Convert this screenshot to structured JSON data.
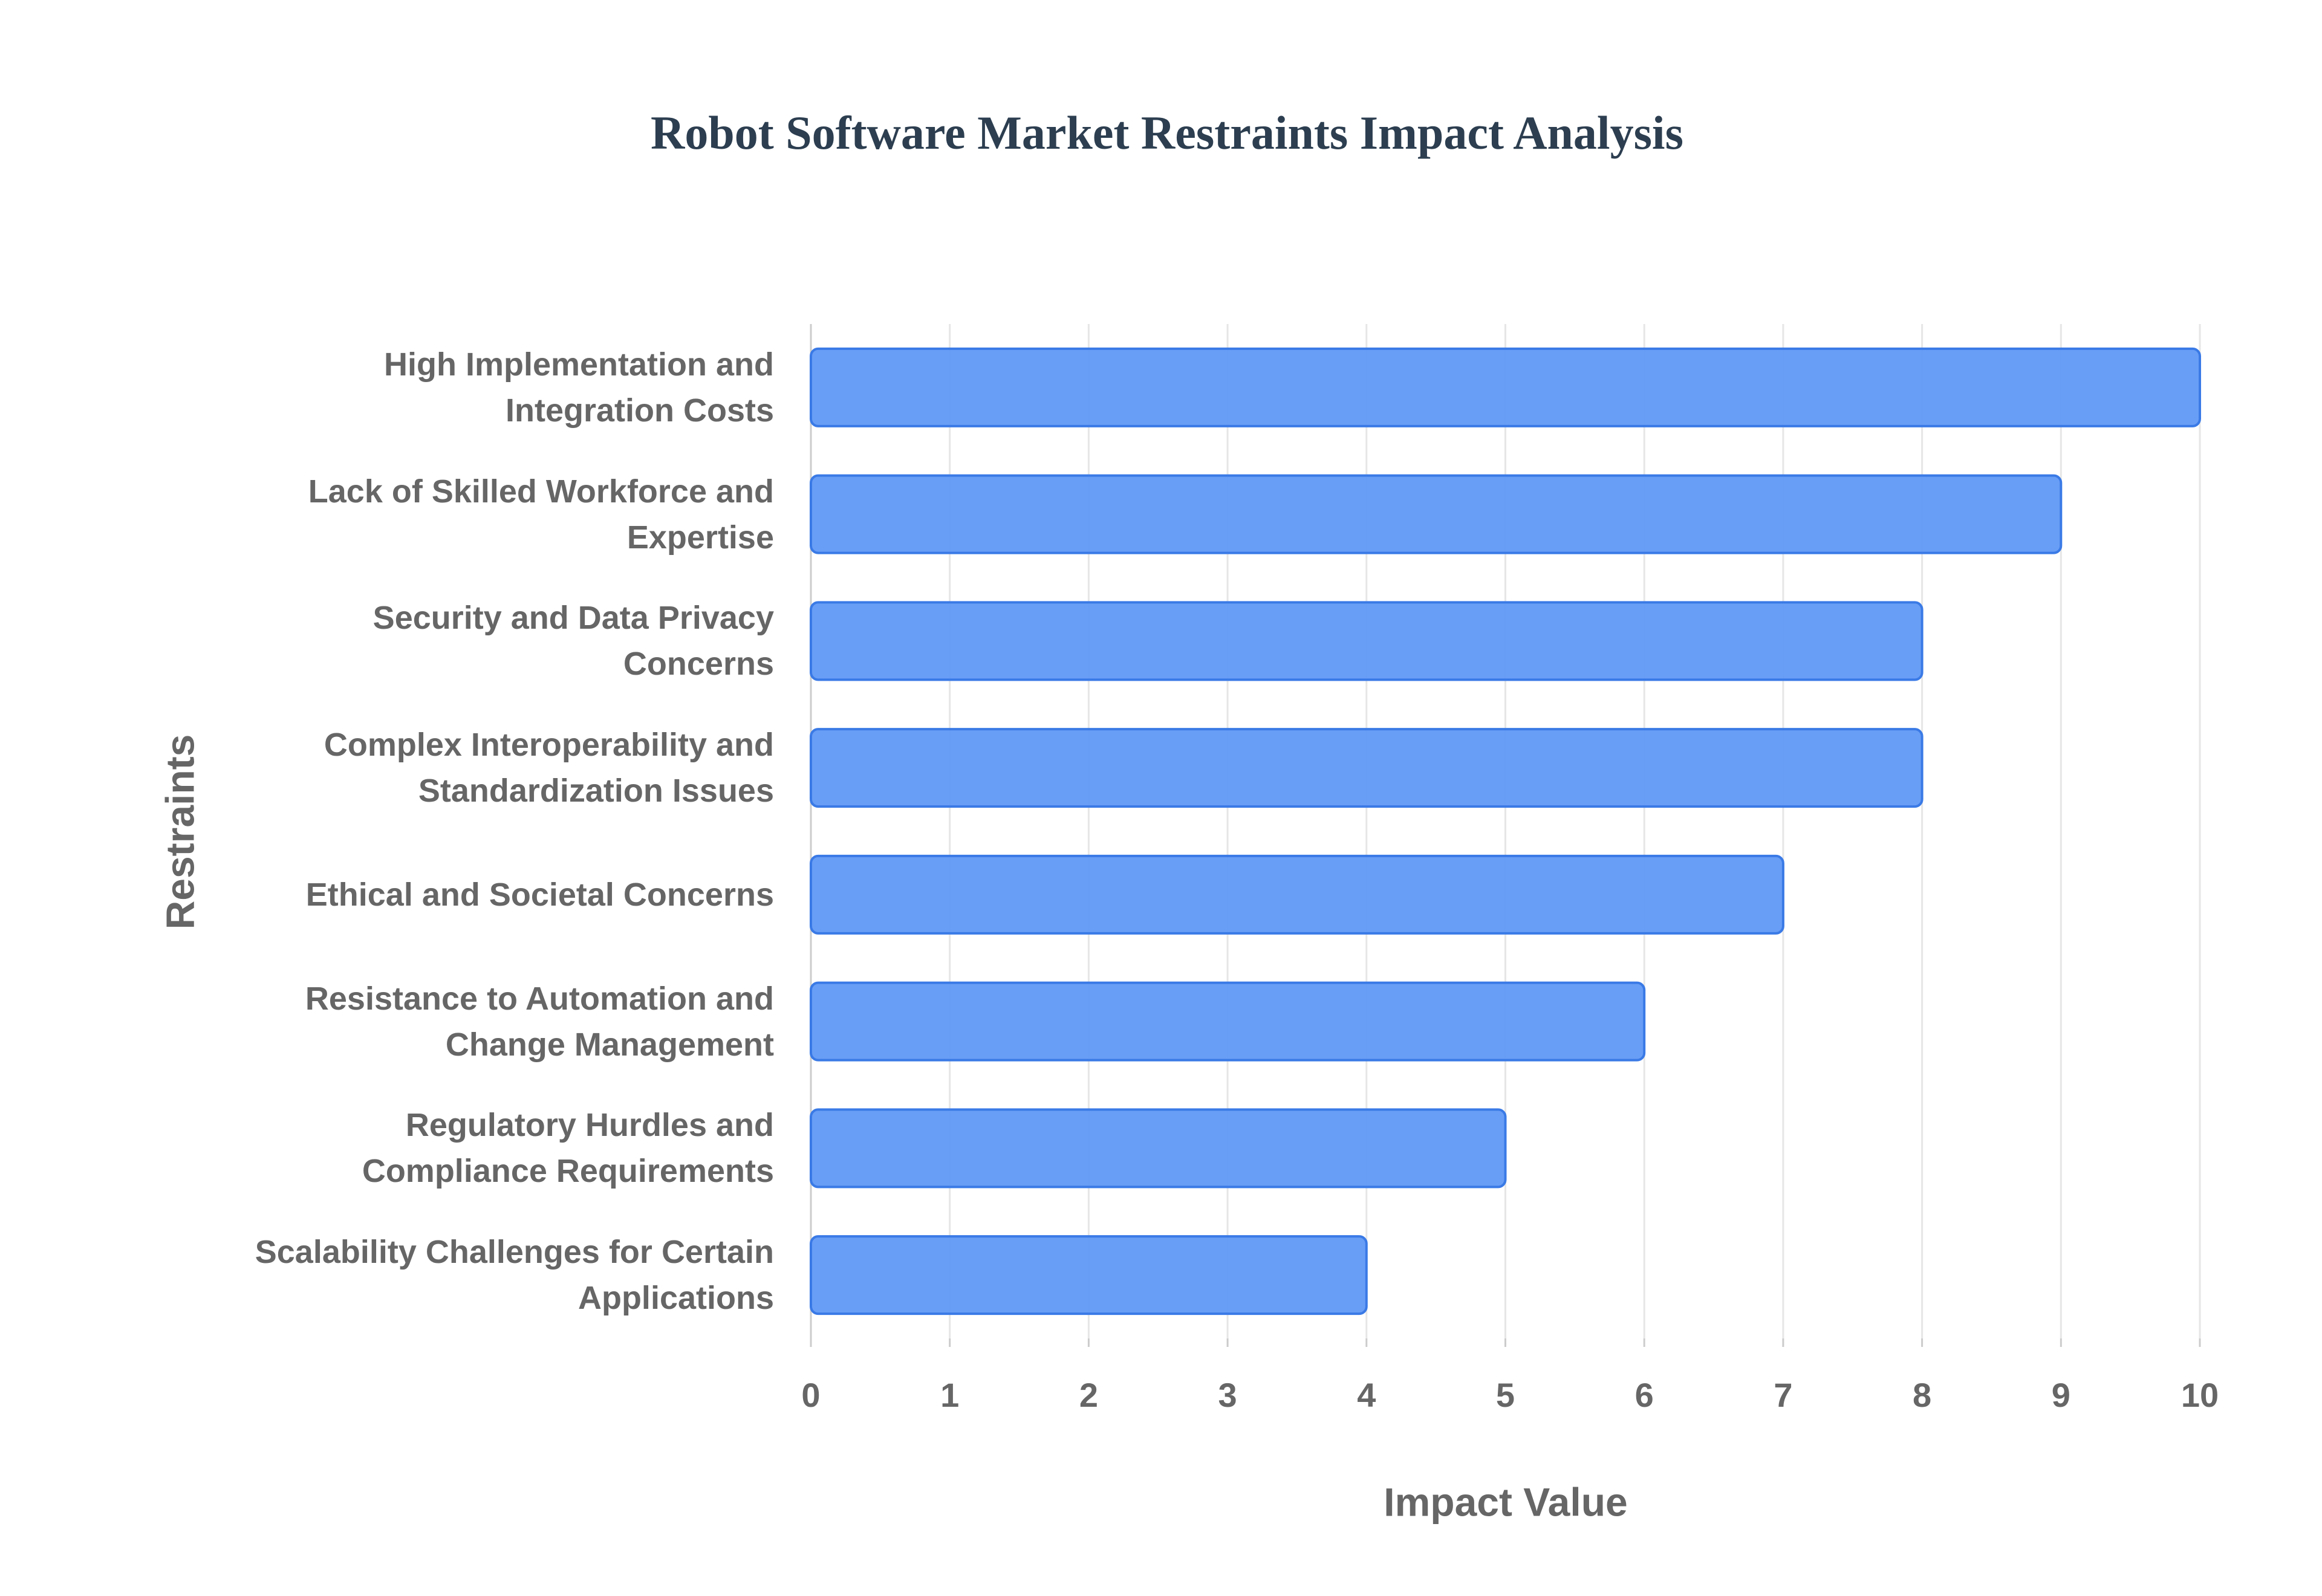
{
  "chart_data": {
    "type": "hbar",
    "title": "Robot Software Market Restraints Impact Analysis",
    "x_label": "Impact Value",
    "y_label": "Restraints",
    "categories": [
      "High Implementation and Integration Costs",
      "Lack of Skilled Workforce and Expertise",
      "Security and Data Privacy Concerns",
      "Complex Interoperability and Standardization Issues",
      "Ethical and Societal Concerns",
      "Resistance to Automation and Change Management",
      "Regulatory Hurdles and Compliance Requirements",
      "Scalability Challenges for Certain Applications"
    ],
    "values": [
      10,
      9,
      8,
      8,
      7,
      6,
      5,
      4
    ],
    "color": "#6199f5",
    "edge_color": "#3a7ae6",
    "xlim": [
      0,
      10
    ],
    "xticks": [
      0,
      1,
      2,
      3,
      4,
      5,
      6,
      7,
      8,
      9,
      10
    ],
    "grid": true
  }
}
